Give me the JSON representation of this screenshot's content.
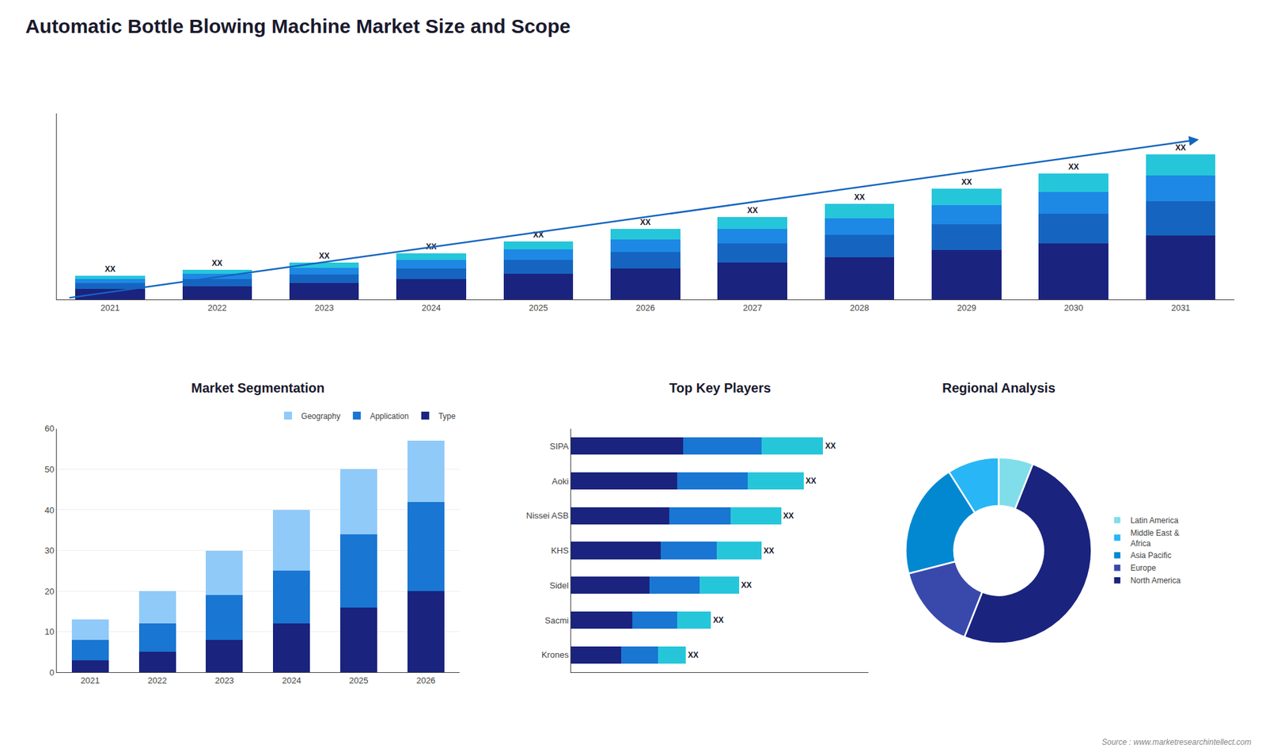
{
  "title": "Automatic Bottle Blowing Machine Market Size and Scope",
  "annotations": [
    {
      "text": "Source : www.marketresearchintellect.com"
    }
  ],
  "chart_data": [
    {
      "type": "bar",
      "stacked": true,
      "categories": [
        "2021",
        "2022",
        "2023",
        "2024",
        "2025",
        "2026",
        "2027",
        "2028",
        "2029",
        "2030",
        "2031"
      ],
      "series": [
        {
          "color": "#1a237e",
          "values": [
            0.8,
            1.0,
            1.2,
            1.5,
            1.9,
            2.3,
            2.7,
            3.1,
            3.6,
            4.1,
            4.7
          ]
        },
        {
          "color": "#1565c0",
          "values": [
            0.4,
            0.5,
            0.65,
            0.8,
            1.0,
            1.2,
            1.4,
            1.65,
            1.9,
            2.15,
            2.5
          ]
        },
        {
          "color": "#1e88e5",
          "values": [
            0.3,
            0.38,
            0.48,
            0.6,
            0.75,
            0.9,
            1.05,
            1.2,
            1.4,
            1.6,
            1.85
          ]
        },
        {
          "color": "#26c6da",
          "values": [
            0.25,
            0.32,
            0.4,
            0.5,
            0.62,
            0.75,
            0.88,
            1.02,
            1.18,
            1.35,
            1.55
          ]
        }
      ],
      "ylim": [
        0,
        13.568
      ],
      "tick_labels": "x",
      "grid": false,
      "annotations": [
        {
          "x": "2021",
          "text": "XX"
        },
        {
          "x": "2022",
          "text": "XX"
        },
        {
          "x": "2023",
          "text": "XX"
        },
        {
          "x": "2024",
          "text": "XX"
        },
        {
          "x": "2025",
          "text": "XX"
        },
        {
          "x": "2026",
          "text": "XX"
        },
        {
          "x": "2027",
          "text": "XX"
        },
        {
          "x": "2028",
          "text": "XX"
        },
        {
          "x": "2029",
          "text": "XX"
        },
        {
          "x": "2030",
          "text": "XX"
        },
        {
          "x": "2031",
          "text": "XX"
        }
      ]
    },
    {
      "type": "bar",
      "title": "Market Segmentation",
      "stacked": true,
      "categories": [
        "2021",
        "2022",
        "2023",
        "2024",
        "2025",
        "2026"
      ],
      "series": [
        {
          "name": "Type",
          "color": "#1a237e",
          "values": [
            3,
            5,
            8,
            12,
            16,
            20
          ]
        },
        {
          "name": "Application",
          "color": "#1976d2",
          "values": [
            5,
            7,
            11,
            13,
            18,
            22
          ]
        },
        {
          "name": "Geography",
          "color": "#90caf9",
          "values": [
            5,
            8,
            11,
            15,
            16,
            15
          ]
        }
      ],
      "ylim": [
        0,
        60
      ],
      "yticks": [
        0,
        10,
        20,
        30,
        40,
        50,
        60
      ],
      "grid": true,
      "legend": "upper right"
    },
    {
      "type": "bar",
      "title": "Top Key Players",
      "orientation": "horizontal",
      "stacked": true,
      "categories": [
        "SIPA",
        "Aoki",
        "Nissei ASB",
        "KHS",
        "Sidel",
        "Sacmi",
        "Krones"
      ],
      "series": [
        {
          "color": "#1a237e",
          "values": [
            40,
            38,
            35,
            32,
            28,
            22,
            18
          ]
        },
        {
          "color": "#1976d2",
          "values": [
            28,
            25,
            22,
            20,
            18,
            16,
            13
          ]
        },
        {
          "color": "#26c6da",
          "values": [
            22,
            20,
            18,
            16,
            14,
            12,
            10
          ]
        }
      ],
      "xlim": [
        0,
        106.2
      ],
      "tick_labels": "y",
      "grid": false,
      "annotations": [
        {
          "y": "SIPA",
          "text": "XX"
        },
        {
          "y": "Aoki",
          "text": "XX"
        },
        {
          "y": "Nissei ASB",
          "text": "XX"
        },
        {
          "y": "KHS",
          "text": "XX"
        },
        {
          "y": "Sidel",
          "text": "XX"
        },
        {
          "y": "Sacmi",
          "text": "XX"
        },
        {
          "y": "Krones",
          "text": "XX"
        }
      ]
    },
    {
      "type": "pie",
      "title": "Regional Analysis",
      "categories": [
        "Latin America",
        "Middle East &\nAfrica",
        "Asia Pacific",
        "Europe",
        "North America"
      ],
      "values": [
        6,
        9,
        20,
        15,
        50
      ],
      "colors": [
        "#80deea",
        "#29b6f6",
        "#0288d1",
        "#3949ab",
        "#1a237e"
      ],
      "legend": "right"
    }
  ]
}
